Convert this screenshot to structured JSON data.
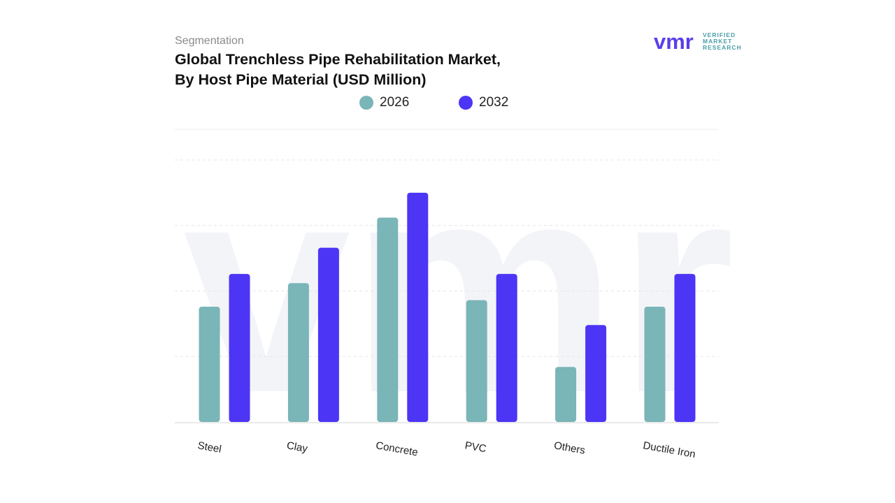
{
  "header": {
    "eyebrow": "Segmentation",
    "title_line1": "Global Trenchless Pipe Rehabilitation Market,",
    "title_line2": "By Host Pipe Material (USD Million)"
  },
  "logo": {
    "mark": "vmr",
    "line1": "VERIFIED",
    "line2": "MARKET",
    "line3": "RESEARCH",
    "color_mark": "#5b3ee8",
    "color_text": "#4a9fa8"
  },
  "colors": {
    "series_2026": "#7ab5b8",
    "series_2032": "#4c35f5",
    "grid": "#e6e6e6"
  },
  "chart_data": {
    "type": "bar",
    "title": "Global Trenchless Pipe Rehabilitation Market, By Host Pipe Material (USD Million)",
    "categories": [
      "Steel",
      "Clay",
      "Concrete",
      "PVC",
      "Others",
      "Ductile Iron"
    ],
    "series": [
      {
        "name": "2026",
        "values": [
          44,
          53,
          78,
          46.5,
          21,
          44
        ]
      },
      {
        "name": "2032",
        "values": [
          56.5,
          66.5,
          87.5,
          56.5,
          37,
          56.5
        ]
      }
    ],
    "ylim": [
      0,
      100
    ],
    "grid": true,
    "legend_position": "top-center",
    "y_tick_labels_visible": false,
    "xlabel": "",
    "ylabel": ""
  }
}
